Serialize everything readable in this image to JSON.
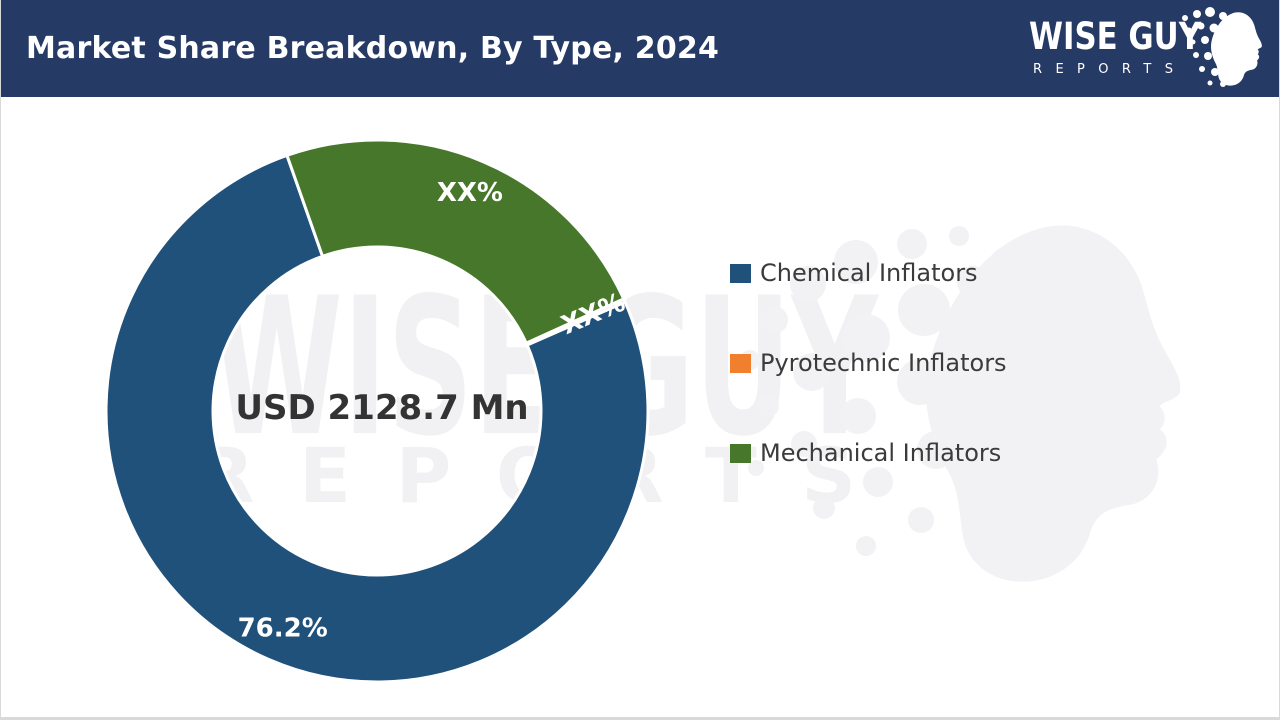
{
  "header": {
    "title": "Market Share Breakdown, By Type, 2024",
    "logo": {
      "name": "WISE GUY",
      "subtitle": "REPORTS"
    }
  },
  "watermark": {
    "line1": "WISE GUY",
    "line2": "REPORTS"
  },
  "chart_data": {
    "type": "pie",
    "subtype": "donut",
    "title": "Market Share Breakdown, By Type, 2024",
    "center_label": "USD 2128.7 Mn",
    "start_angle": 109.4,
    "direction": "counterclockwise",
    "legend_position": "right",
    "slices": [
      {
        "name": "Chemical Inflators",
        "value": 76.2,
        "color": "#20517A",
        "label": "76.2%",
        "label_rotation": 0
      },
      {
        "name": "Pyrotechnic Inflators",
        "value": 0.2,
        "color": "#F0802D",
        "label": "XX%",
        "label_rotation": -23
      },
      {
        "name": "Mechanical Inflators",
        "value": 23.6,
        "color": "#47772A",
        "label": "XX%",
        "label_rotation": 0
      }
    ],
    "colors": {
      "header_bg": "#263A66",
      "slice_label_text": "#ffffff",
      "center_text": "#333333",
      "legend_text": "#3b3b3b",
      "watermark": "#f1f1f3"
    }
  }
}
